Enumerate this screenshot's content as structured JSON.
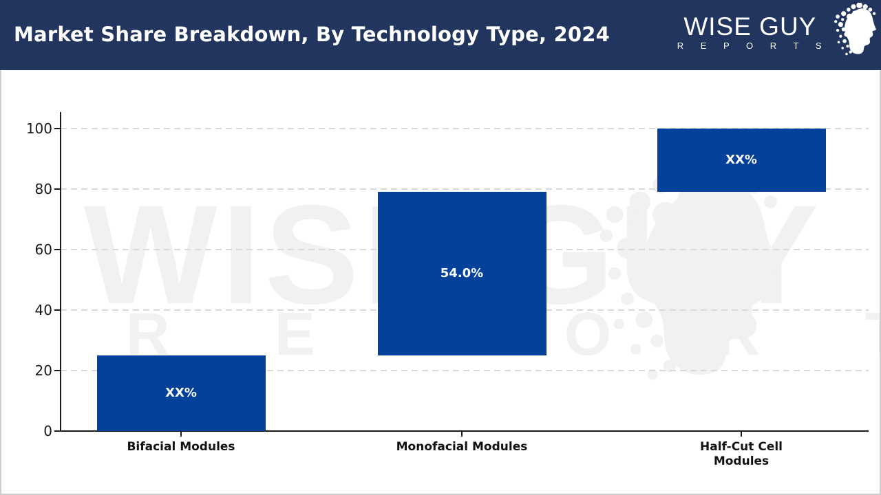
{
  "header": {
    "title": "Market Share Breakdown, By Technology Type, 2024",
    "logo_line1": "WISE GUY",
    "logo_line2": "R E P O R T S"
  },
  "watermark": {
    "line1": "WISE GUY",
    "line2": "R E P O R T S"
  },
  "colors": {
    "header_bg": "#22355e",
    "bar": "#04419b",
    "bar_label": "#ffffff",
    "axis": "#1a1a1a",
    "grid": "#d9d9d9",
    "watermark": "#f1f1f3",
    "logo_text": "#ffffff"
  },
  "chart_data": {
    "type": "bar",
    "subtype": "waterfall",
    "title": "Market Share Breakdown, By Technology Type, 2024",
    "categories": [
      "Bifacial Modules",
      "Monofacial Modules",
      "Half-Cut Cell Modules"
    ],
    "categories_display": [
      [
        "Bifacial Modules"
      ],
      [
        "Monofacial Modules"
      ],
      [
        "Half-Cut Cell",
        "Modules"
      ]
    ],
    "segments": [
      {
        "category": "Bifacial Modules",
        "start": 0,
        "end": 25,
        "value_label": "XX%",
        "value_est": 25
      },
      {
        "category": "Monofacial Modules",
        "start": 25,
        "end": 79,
        "value_label": "54.0%",
        "value_est": 54
      },
      {
        "category": "Half-Cut Cell Modules",
        "start": 79,
        "end": 100,
        "value_label": "XX%",
        "value_est": 21
      }
    ],
    "yticks": [
      0,
      20,
      40,
      60,
      80,
      100
    ],
    "ylim": [
      0,
      105
    ],
    "xlabel": "",
    "ylabel": "",
    "grid": "horizontal-dashed",
    "legend": "none"
  }
}
